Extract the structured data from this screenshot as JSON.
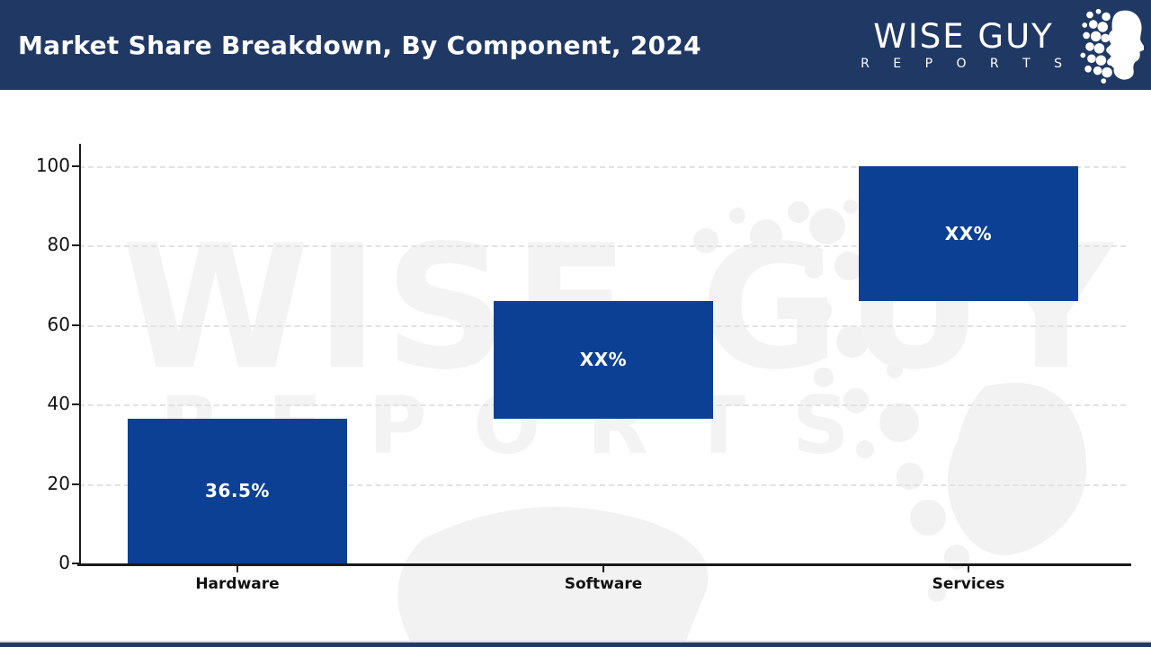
{
  "header": {
    "title": "Market Share Breakdown, By Component, 2024",
    "bg_color": "#203864",
    "logo": {
      "line1": "WISE GUY",
      "line2": "R E P O R T S"
    }
  },
  "watermark": {
    "line1": "WISE GUY",
    "line2": "REPORTS"
  },
  "chart_data": {
    "type": "bar",
    "subtype": "waterfall",
    "title": "Market Share Breakdown, By Component, 2024",
    "categories": [
      "Hardware",
      "Software",
      "Services"
    ],
    "series": [
      {
        "name": "Market share (%)",
        "segments": [
          {
            "label": "Hardware",
            "start": 0,
            "end": 36.5,
            "display_label": "36.5%"
          },
          {
            "label": "Software",
            "start": 36.5,
            "end": 66,
            "display_label": "XX%"
          },
          {
            "label": "Services",
            "start": 66,
            "end": 100,
            "display_label": "XX%"
          }
        ]
      }
    ],
    "xlabel": "",
    "ylabel": "",
    "ylim": [
      0,
      100
    ],
    "yticks": [
      0,
      20,
      40,
      60,
      80,
      100
    ],
    "grid": "horizontal-dashed",
    "legend": "none",
    "bar_color": "#0b4094",
    "bar_label_color": "#ffffff",
    "axis_color": "#1a1a1a"
  }
}
